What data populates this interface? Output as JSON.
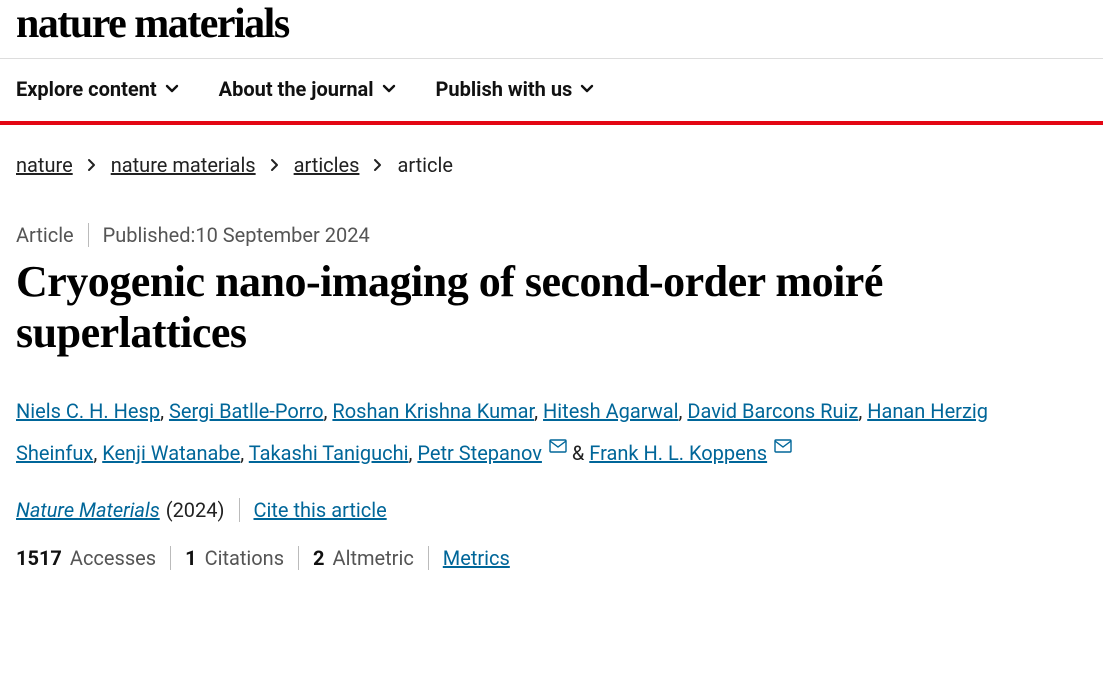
{
  "brand": "nature materials",
  "nav": {
    "items": [
      {
        "label": "Explore content"
      },
      {
        "label": "About the journal"
      },
      {
        "label": "Publish with us"
      }
    ],
    "accent_color": "#e30613"
  },
  "breadcrumbs": {
    "links": [
      {
        "label": "nature"
      },
      {
        "label": "nature materials"
      },
      {
        "label": "articles"
      }
    ],
    "current": "article"
  },
  "meta": {
    "type": "Article",
    "published_prefix": "Published: ",
    "published_date": "10 September 2024"
  },
  "title": "Cryogenic nano-imaging of second-order moiré superlattices",
  "authors": [
    {
      "name": "Niels C. H. Hesp",
      "corresponding": false
    },
    {
      "name": "Sergi Batlle-Porro",
      "corresponding": false
    },
    {
      "name": "Roshan Krishna Kumar",
      "corresponding": false
    },
    {
      "name": "Hitesh Agarwal",
      "corresponding": false
    },
    {
      "name": "David Barcons Ruiz",
      "corresponding": false
    },
    {
      "name": "Hanan Herzig Sheinfux",
      "corresponding": false
    },
    {
      "name": "Kenji Watanabe",
      "corresponding": false
    },
    {
      "name": "Takashi Taniguchi",
      "corresponding": false
    },
    {
      "name": "Petr Stepanov",
      "corresponding": true
    },
    {
      "name": "Frank H. L. Koppens",
      "corresponding": true
    }
  ],
  "journal": {
    "name": "Nature Materials",
    "year": "(2024)",
    "cite_label": "Cite this article"
  },
  "metrics": {
    "accesses": {
      "value": "1517",
      "label": "Accesses"
    },
    "citations": {
      "value": "1",
      "label": "Citations"
    },
    "altmetric": {
      "value": "2",
      "label": "Altmetric"
    },
    "link_label": "Metrics"
  },
  "colors": {
    "link": "#006699",
    "text": "#222222",
    "muted": "#555555"
  }
}
